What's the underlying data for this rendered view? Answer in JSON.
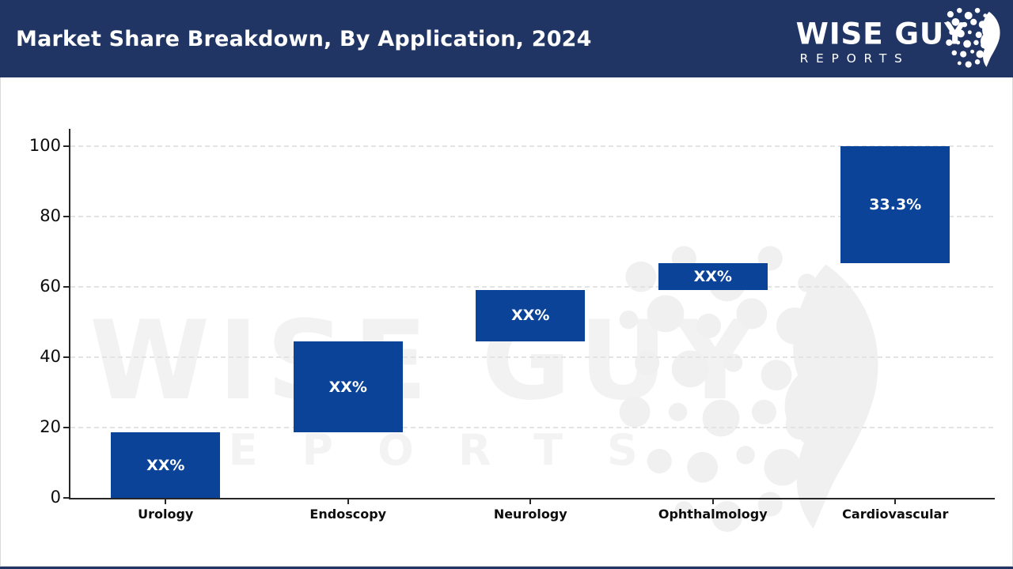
{
  "header": {
    "title": "Market Share Breakdown, By Application, 2024",
    "brand_line1": "WISE GUY",
    "brand_line2": "REPORTS"
  },
  "watermark": {
    "line1": "WISE GUY",
    "line2": "REPORTS"
  },
  "colors": {
    "header_bg": "#213564",
    "footer_bg": "#213564",
    "bar": "#0a4397",
    "bar_label": "#ffffff",
    "axis": "#262626",
    "grid": "#e3e3e3",
    "tick_label": "#0d0d0d"
  },
  "chart_data": {
    "type": "bar",
    "subtype": "waterfall",
    "title": "Market Share Breakdown, By Application, 2024",
    "categories": [
      "Urology",
      "Endoscopy",
      "Neurology",
      "Ophthalmology",
      "Cardiovascular"
    ],
    "series": [
      {
        "name": "Market share (%)",
        "segments": [
          {
            "category": "Urology",
            "from": 0,
            "to": 18.6,
            "label": "XX%"
          },
          {
            "category": "Endoscopy",
            "from": 18.6,
            "to": 44.5,
            "label": "XX%"
          },
          {
            "category": "Neurology",
            "from": 44.5,
            "to": 59.2,
            "label": "XX%"
          },
          {
            "category": "Ophthalmology",
            "from": 59.2,
            "to": 66.7,
            "label": "XX%"
          },
          {
            "category": "Cardiovascular",
            "from": 66.7,
            "to": 100,
            "label": "33.3%"
          }
        ]
      }
    ],
    "xlabel": "",
    "ylabel": "",
    "ylim": [
      0,
      100
    ],
    "yticks": [
      0,
      20,
      40,
      60,
      80,
      100
    ],
    "grid": "horizontal-dashed",
    "legend": "none"
  }
}
